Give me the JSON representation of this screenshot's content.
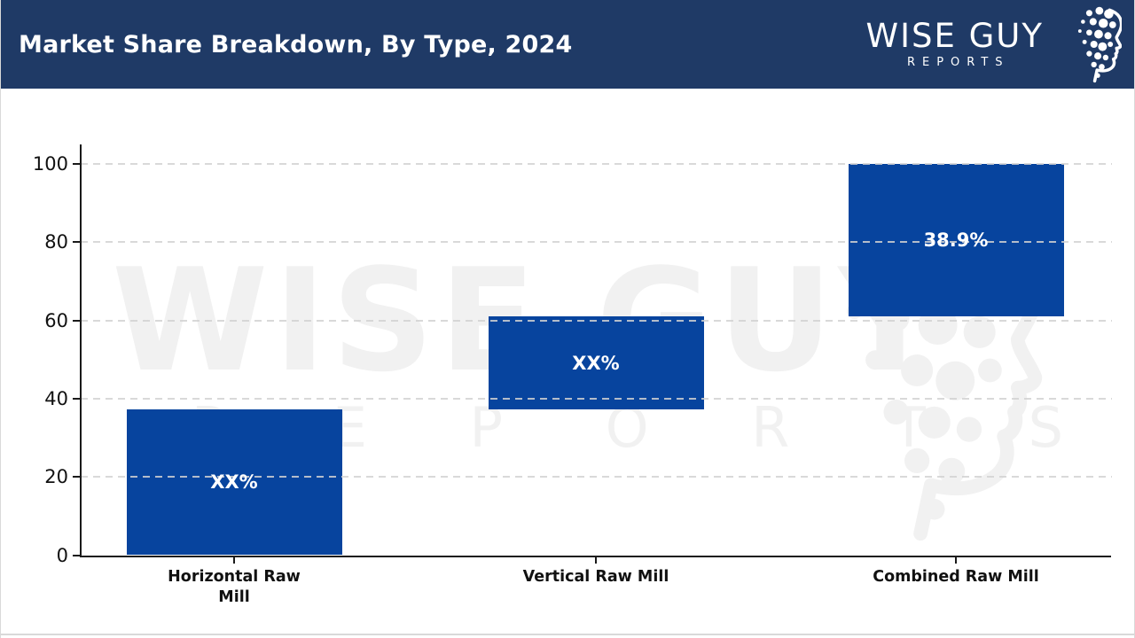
{
  "header": {
    "title": "Market Share Breakdown, By Type, 2024",
    "logo": {
      "primary": "WISE GUY",
      "secondary": "REPORTS"
    }
  },
  "watermark": {
    "primary": "WISE GUY",
    "secondary": "R E P O R T S"
  },
  "colors": {
    "header_bg": "#1f3a66",
    "bar": "#07449e",
    "grid": "#d2d2d2",
    "watermark": "#f1f1f1"
  },
  "chart_data": {
    "type": "bar",
    "variant": "floating-stacked-breakdown",
    "title": "Market Share Breakdown, By Type, 2024",
    "xlabel": "",
    "ylabel": "",
    "ylim": [
      0,
      100
    ],
    "yticks": [
      0,
      20,
      40,
      60,
      80,
      100
    ],
    "grid": {
      "style": "dashed",
      "orientation": "horizontal",
      "positions": [
        20,
        40,
        60,
        80,
        100
      ]
    },
    "legend": null,
    "categories": [
      "Horizontal Raw Mill",
      "Vertical Raw Mill",
      "Combined Raw Mill"
    ],
    "bars": [
      {
        "category": "Horizontal Raw Mill",
        "from": 0,
        "to": 37.2,
        "value": 37.2,
        "label": "XX%"
      },
      {
        "category": "Vertical Raw Mill",
        "from": 37.2,
        "to": 61.1,
        "value": 23.9,
        "label": "XX%"
      },
      {
        "category": "Combined Raw Mill",
        "from": 61.1,
        "to": 100,
        "value": 38.9,
        "label": "38.9%"
      }
    ]
  }
}
